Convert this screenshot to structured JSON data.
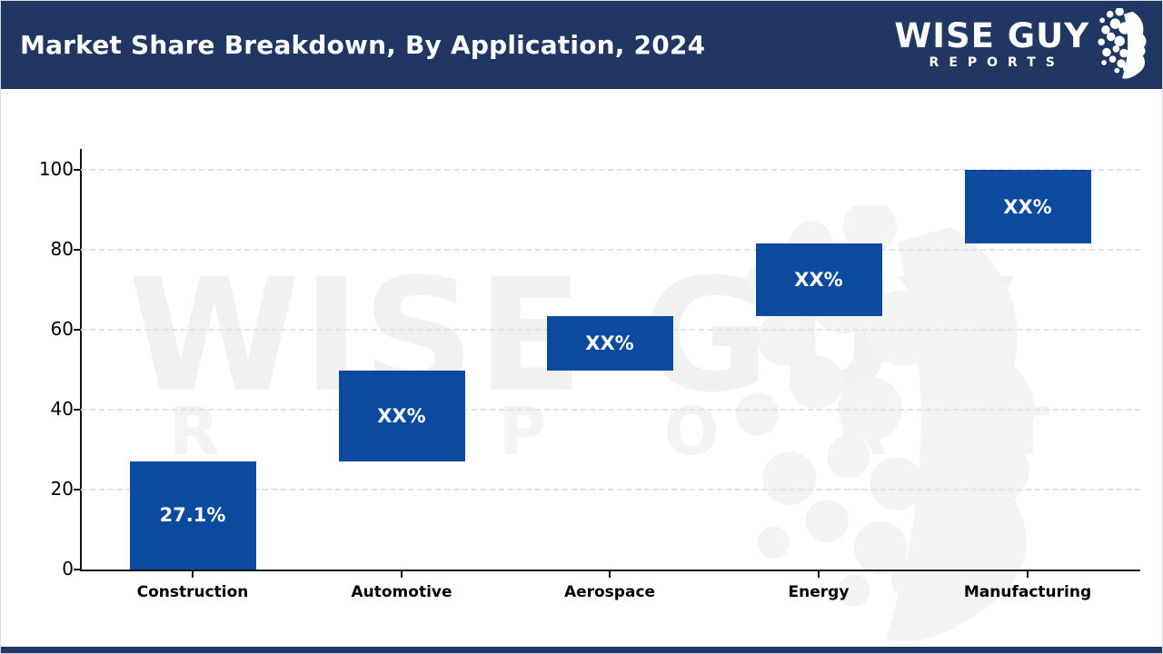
{
  "header": {
    "title": "Market Share Breakdown, By Application, 2024",
    "bg_color": "#203663",
    "logo": {
      "line1": "WISE GUY",
      "line2": "REPORTS"
    }
  },
  "watermark": {
    "line1": "WISE GUY",
    "line2": "R E P O R T S"
  },
  "footer": {
    "bg_color": "#203663"
  },
  "chart_data": {
    "type": "bar",
    "variant": "waterfall",
    "title": "Market Share Breakdown, By Application, 2024",
    "categories": [
      "Construction",
      "Automotive",
      "Aerospace",
      "Energy",
      "Manufacturing"
    ],
    "segments": [
      {
        "category": "Construction",
        "start": 0,
        "end": 27.1,
        "label": "27.1%"
      },
      {
        "category": "Automotive",
        "start": 27.1,
        "end": 49.7,
        "label": "XX%"
      },
      {
        "category": "Aerospace",
        "start": 49.7,
        "end": 63.3,
        "label": "XX%"
      },
      {
        "category": "Energy",
        "start": 63.3,
        "end": 81.5,
        "label": "XX%"
      },
      {
        "category": "Manufacturing",
        "start": 81.5,
        "end": 100,
        "label": "XX%"
      }
    ],
    "yticks": [
      0,
      20,
      40,
      60,
      80,
      100
    ],
    "ylim": [
      0,
      105
    ],
    "xlabel": "",
    "ylabel": "",
    "grid": true,
    "legend": false,
    "bar_color": "#0b4a9e",
    "bar_label_color": "#ffffff",
    "axis_color": "#111111",
    "gridline_color": "#e3e3e3"
  }
}
